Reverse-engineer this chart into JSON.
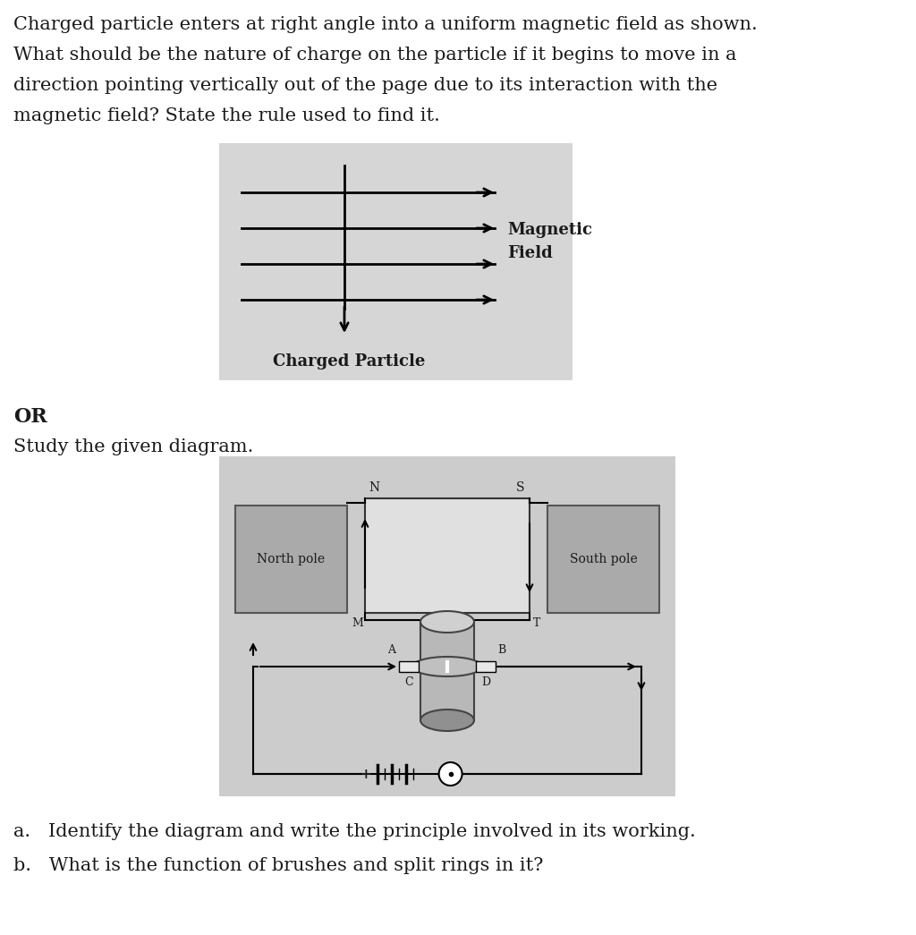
{
  "bg_color": "#ffffff",
  "text_color": "#1a1a1a",
  "paragraph1": "Charged particle enters at right angle into a uniform magnetic field as shown.",
  "paragraph2": "What should be the nature of charge on the particle if it begins to move in a",
  "paragraph3": "direction pointing vertically out of the page due to its interaction with the",
  "paragraph4": "magnetic field? State the rule used to find it.",
  "diagram1_bg": "#d6d6d6",
  "diagram1_label_magnetic": "Magnetic\nField",
  "diagram1_label_particle": "Charged Particle",
  "or_text": "OR",
  "study_text": "Study the given diagram.",
  "diagram2_bg": "#cccccc",
  "north_label": "North pole",
  "south_label": "South pole",
  "N_label": "N",
  "S_label": "S",
  "M_label": "M",
  "T_label": "T",
  "A_label": "A",
  "B_label": "B",
  "C_label": "C",
  "D_label": "D",
  "question_a": "a.   Identify the diagram and write the principle involved in its working.",
  "question_b": "b.   What is the function of brushes and split rings in it?",
  "font_size_body": 15,
  "font_size_diagram": 13,
  "font_size_small": 10,
  "font_size_or": 16,
  "font_family": "DejaVu Serif"
}
